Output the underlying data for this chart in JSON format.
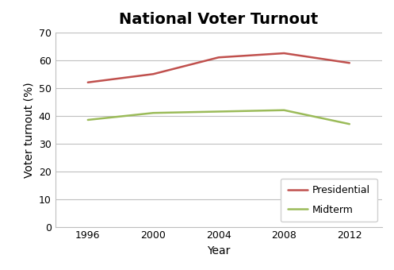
{
  "title": "National Voter Turnout",
  "xlabel": "Year",
  "ylabel": "Voter turnout (%)",
  "years": [
    1996,
    2000,
    2004,
    2008,
    2012
  ],
  "presidential": [
    52,
    55,
    61,
    62.5,
    59
  ],
  "midterm": [
    38.5,
    41,
    41.5,
    42,
    37
  ],
  "presidential_color": "#c0504d",
  "midterm_color": "#9bbb59",
  "ylim": [
    0,
    70
  ],
  "yticks": [
    0,
    10,
    20,
    30,
    40,
    50,
    60,
    70
  ],
  "xticks": [
    1996,
    2000,
    2004,
    2008,
    2012
  ],
  "legend_labels": [
    "Presidential",
    "Midterm"
  ],
  "title_fontsize": 14,
  "axis_label_fontsize": 10,
  "tick_fontsize": 9,
  "line_width": 1.8,
  "background_color": "#ffffff",
  "grid_color": "#bfbfbf",
  "spine_color": "#bfbfbf",
  "xlim": [
    1994,
    2014
  ]
}
